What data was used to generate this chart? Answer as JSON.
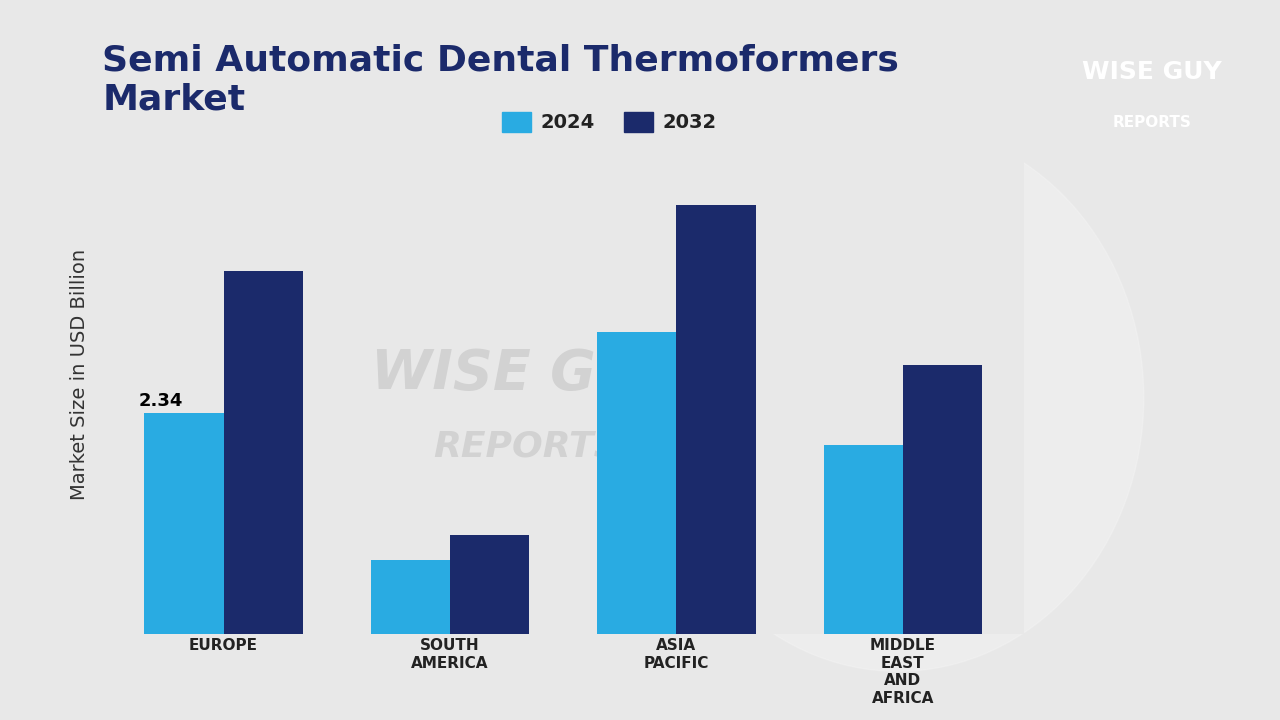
{
  "title": "Semi Automatic Dental Thermoformers\nMarket",
  "ylabel": "Market Size in USD Billion",
  "categories": [
    "EUROPE",
    "SOUTH\nAMERICA",
    "ASIA\nPACIFIC",
    "MIDDLE\nEAST\nAND\nAFRICA"
  ],
  "values_2024": [
    2.34,
    0.78,
    3.2,
    2.0
  ],
  "values_2032": [
    3.85,
    1.05,
    4.55,
    2.85
  ],
  "color_2024": "#29ABE2",
  "color_2032": "#1B2A6B",
  "background_color": "#E8E8E8",
  "right_panel_color": "#0D1B5E",
  "annotation_2024": "2.34",
  "title_color": "#1B2A6B",
  "bar_label_color": "#000000",
  "legend_2024": "2024",
  "legend_2032": "2032",
  "ylim": [
    0,
    5.5
  ],
  "title_fontsize": 26,
  "axis_label_fontsize": 14,
  "tick_label_fontsize": 11,
  "legend_fontsize": 14,
  "annotation_fontsize": 13
}
